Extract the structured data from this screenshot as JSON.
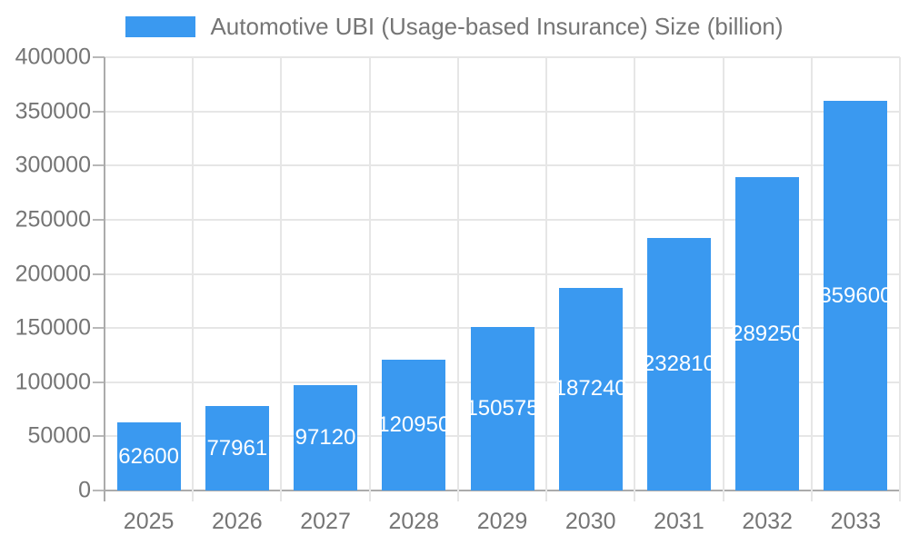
{
  "legend": {
    "swatch_icon": "legend-color-swatch"
  },
  "chart_data": {
    "type": "bar",
    "title": "Automotive UBI (Usage-based Insurance) Size (billion)",
    "categories": [
      "2025",
      "2026",
      "2027",
      "2028",
      "2029",
      "2030",
      "2031",
      "2032",
      "2033"
    ],
    "series": [
      {
        "name": "Automotive UBI (Usage-based Insurance) Size (billion)",
        "values": [
          62600,
          77961,
          97120,
          120950,
          150575,
          187240,
          232810,
          289250,
          359600
        ],
        "color": "#3A99F0"
      }
    ],
    "bar_value_labels": [
      "62600",
      "77961",
      "97120",
      "120950",
      "150575",
      "187240",
      "232810",
      "289250",
      "359600"
    ],
    "xlabel": "",
    "ylabel": "",
    "ylim": [
      0,
      400000
    ],
    "ytick_step": 50000,
    "ytick_labels": [
      "0",
      "50000",
      "100000",
      "150000",
      "200000",
      "250000",
      "300000",
      "350000",
      "400000"
    ],
    "grid": true,
    "legend_position": "top-center",
    "bar_label_position": "inside-center",
    "style": {
      "bar_color": "#3A99F0",
      "bar_label_color": "#ffffff",
      "axis_text_color": "#757575",
      "grid_color": "#e6e6e6",
      "axis_line_color": "#ababab",
      "tick_color": "#b8b8b8",
      "background": "#ffffff"
    }
  }
}
